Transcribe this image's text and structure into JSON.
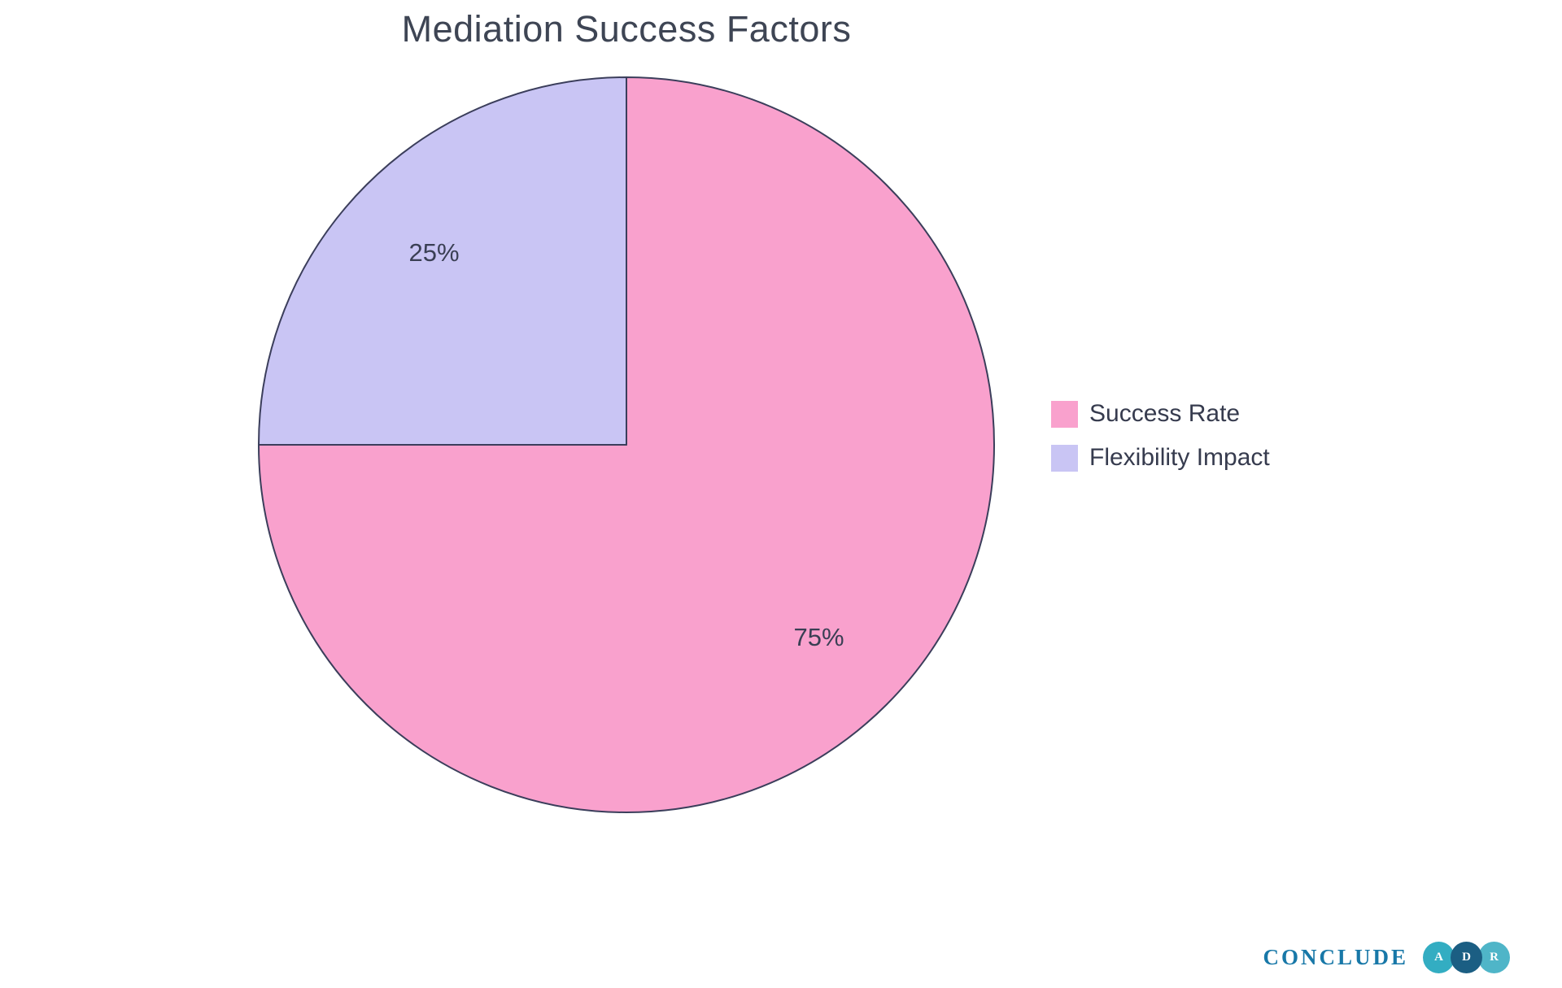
{
  "chart_data": {
    "type": "pie",
    "title": "Mediation Success Factors",
    "labels": [
      "Success Rate",
      "Flexibility Impact"
    ],
    "values": [
      75,
      25
    ],
    "percent_labels": [
      "75%",
      "25%"
    ],
    "colors": [
      "#F9A1CD",
      "#C9C5F4"
    ],
    "slice_border_color": "#3B3E5B",
    "start_angle_deg": 0,
    "direction": "clockwise",
    "legend_position": "right"
  },
  "branding": {
    "wordmark": "CONCLUDE",
    "wordmark_color": "#1878A8",
    "badges": [
      {
        "letter": "A",
        "color": "#33ADC2"
      },
      {
        "letter": "D",
        "color": "#1B5E83"
      },
      {
        "letter": "R",
        "color": "#4FB5C8"
      }
    ]
  }
}
